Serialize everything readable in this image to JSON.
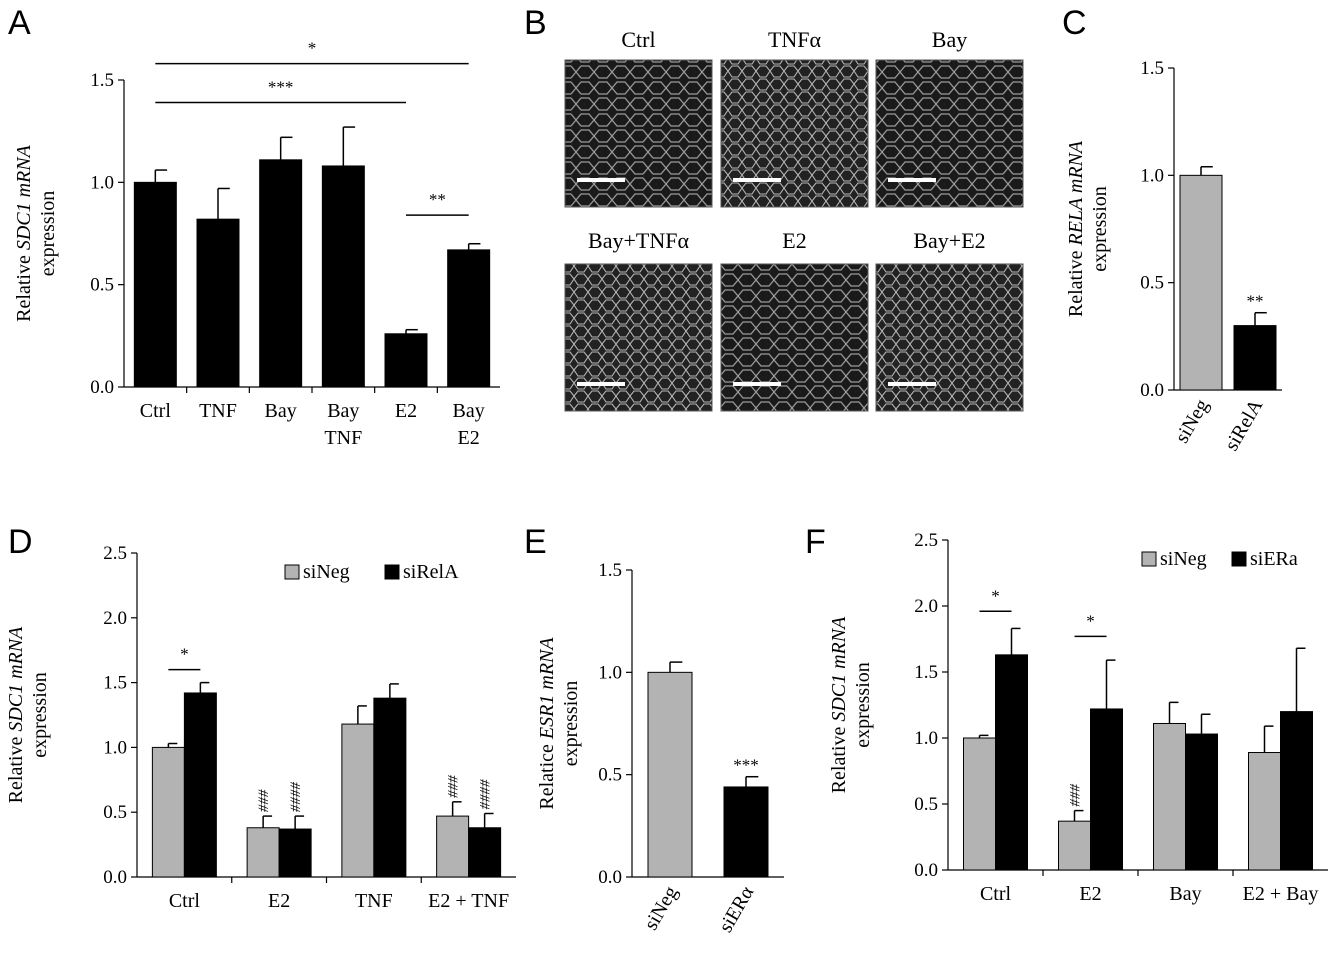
{
  "panels": {
    "A": {
      "letter": "A"
    },
    "B": {
      "letter": "B",
      "images": [
        {
          "label": "Ctrl"
        },
        {
          "label": "TNFα"
        },
        {
          "label": "Bay"
        },
        {
          "label": "Bay+TNFα"
        },
        {
          "label": "E2"
        },
        {
          "label": "Bay+E2"
        }
      ]
    },
    "C": {
      "letter": "C"
    },
    "D": {
      "letter": "D"
    },
    "E": {
      "letter": "E"
    },
    "F": {
      "letter": "F"
    }
  },
  "chart_data": [
    {
      "id": "A",
      "type": "bar",
      "ylabel_pre": "Relative",
      "ylabel_gene": "SDC1 mRNA",
      "ylabel_line2": "expression",
      "ylim": [
        0,
        1.5
      ],
      "yticks": [
        "0.0",
        "0.5",
        "1.0",
        "1.5"
      ],
      "categories": [
        [
          "Ctrl"
        ],
        [
          "TNF"
        ],
        [
          "Bay"
        ],
        [
          "Bay",
          "TNF"
        ],
        [
          "E2"
        ],
        [
          "Bay",
          "E2"
        ]
      ],
      "series": [
        {
          "color": "#000000",
          "values": [
            1.0,
            0.82,
            1.11,
            1.08,
            0.26,
            0.67
          ],
          "errors": [
            0.06,
            0.15,
            0.11,
            0.19,
            0.02,
            0.03
          ]
        }
      ],
      "brackets": [
        {
          "from": 0,
          "to": 5,
          "value": 1.58,
          "label": "*"
        },
        {
          "from": 0,
          "to": 4,
          "value": 1.39,
          "label": "***"
        },
        {
          "from": 4,
          "to": 5,
          "value": 0.84,
          "label": "**"
        }
      ]
    },
    {
      "id": "C",
      "type": "bar",
      "ylabel_pre": "Relative",
      "ylabel_gene": "RELA mRNA",
      "ylabel_line2": "expression",
      "ylim": [
        0,
        1.5
      ],
      "yticks": [
        "0.0",
        "0.5",
        "1.0",
        "1.5"
      ],
      "categories": [
        [
          "siNeg"
        ],
        [
          "siRelA"
        ]
      ],
      "series": [
        {
          "colors": [
            "#b3b3b3",
            "#000000"
          ],
          "values": [
            1.0,
            0.3
          ],
          "errors": [
            0.04,
            0.06
          ],
          "sig": [
            "",
            "**"
          ]
        }
      ]
    },
    {
      "id": "D",
      "type": "bar",
      "ylabel_pre": "Relative",
      "ylabel_gene": "SDC1 mRNA",
      "ylabel_line2": "expression",
      "ylim": [
        0,
        2.5
      ],
      "yticks": [
        "0.0",
        "0.5",
        "1.0",
        "1.5",
        "2.0",
        "2.5"
      ],
      "categories": [
        [
          "Ctrl"
        ],
        [
          "E2"
        ],
        [
          "TNF"
        ],
        [
          "E2 + TNF"
        ]
      ],
      "series": [
        {
          "name": "siNeg",
          "color": "#b3b3b3",
          "values": [
            1.0,
            0.38,
            1.18,
            0.47
          ],
          "errors": [
            0.03,
            0.09,
            0.14,
            0.11
          ],
          "hash": [
            "",
            "###",
            "",
            "###"
          ]
        },
        {
          "name": "siRelA",
          "color": "#000000",
          "values": [
            1.42,
            0.37,
            1.38,
            0.38
          ],
          "errors": [
            0.08,
            0.1,
            0.11,
            0.11
          ],
          "hash": [
            "",
            "####",
            "",
            "####"
          ]
        }
      ],
      "brackets": [
        {
          "group": 0,
          "value": 1.6,
          "label": "*"
        }
      ]
    },
    {
      "id": "E",
      "type": "bar",
      "ylabel_pre": "Relatice",
      "ylabel_gene": "ESR1 mRNA",
      "ylabel_line2": "expression",
      "ylim": [
        0,
        1.5
      ],
      "yticks": [
        "0.0",
        "0.5",
        "1.0",
        "1.5"
      ],
      "categories": [
        [
          "siNeg"
        ],
        [
          "siERα"
        ]
      ],
      "series": [
        {
          "colors": [
            "#b3b3b3",
            "#000000"
          ],
          "values": [
            1.0,
            0.44
          ],
          "errors": [
            0.05,
            0.05
          ],
          "sig": [
            "",
            "***"
          ]
        }
      ]
    },
    {
      "id": "F",
      "type": "bar",
      "ylabel_pre": "Relative",
      "ylabel_gene": "SDC1 mRNA",
      "ylabel_line2": "expression",
      "ylim": [
        0,
        2.5
      ],
      "yticks": [
        "0.0",
        "0.5",
        "1.0",
        "1.5",
        "2.0",
        "2.5"
      ],
      "categories": [
        [
          "Ctrl"
        ],
        [
          "E2"
        ],
        [
          "Bay"
        ],
        [
          "E2 + Bay"
        ]
      ],
      "series": [
        {
          "name": "siNeg",
          "color": "#b3b3b3",
          "values": [
            1.0,
            0.37,
            1.11,
            0.89
          ],
          "errors": [
            0.02,
            0.08,
            0.16,
            0.2
          ],
          "hash": [
            "",
            "###",
            "",
            ""
          ]
        },
        {
          "name": "siERa",
          "color": "#000000",
          "values": [
            1.63,
            1.22,
            1.03,
            1.2
          ],
          "errors": [
            0.2,
            0.37,
            0.15,
            0.48
          ],
          "hash": [
            "",
            "",
            "",
            ""
          ]
        }
      ],
      "brackets": [
        {
          "group": 0,
          "value": 1.96,
          "label": "*"
        },
        {
          "group": 1,
          "value": 1.77,
          "label": "*"
        }
      ]
    }
  ]
}
